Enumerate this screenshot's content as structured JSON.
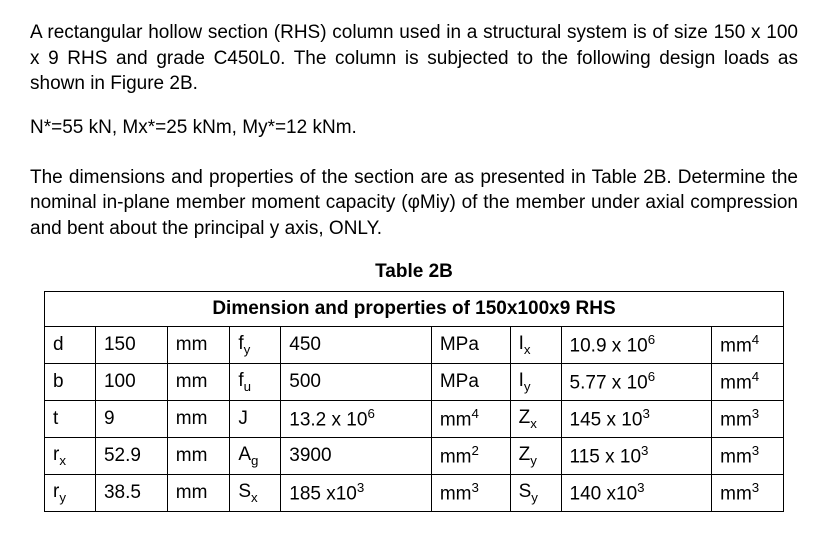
{
  "para1": "A rectangular hollow section (RHS) column used in a structural system is of size 150 x 100 x 9 RHS and grade C450L0. The column is subjected to the following design loads as shown in Figure 2B.",
  "loads": "N*=55 kN, Mx*=25 kNm, My*=12 kNm.",
  "para2": "The dimensions and properties of the section are as presented in Table 2B. Determine the nominal in-plane member moment capacity (φMiy) of the member under axial compression and bent about the principal y axis, ONLY.",
  "table": {
    "title": "Table 2B",
    "header": "Dimension and properties of 150x100x9 RHS",
    "rows": [
      {
        "p1": "d",
        "v1": "150",
        "u1": "mm",
        "p2": "f",
        "p2sub": "y",
        "v2": "450",
        "u2": "MPa",
        "p3": "I",
        "p3sub": "x",
        "v3": "10.9 x 10",
        "v3sup": "6",
        "u3": "mm",
        "u3sup": "4"
      },
      {
        "p1": "b",
        "v1": "100",
        "u1": "mm",
        "p2": "f",
        "p2sub": "u",
        "v2": "500",
        "u2": "MPa",
        "p3": "I",
        "p3sub": "y",
        "v3": "5.77 x 10",
        "v3sup": "6",
        "u3": "mm",
        "u3sup": "4"
      },
      {
        "p1": "t",
        "v1": "9",
        "u1": "mm",
        "p2": "J",
        "p2sub": "",
        "v2": "13.2 x 10",
        "v2sup": "6",
        "u2": "mm",
        "u2sup": "4",
        "p3": "Z",
        "p3sub": "x",
        "v3": "145 x 10",
        "v3sup": "3",
        "u3": "mm",
        "u3sup": "3"
      },
      {
        "p1": "r",
        "p1sub": "x",
        "v1": "52.9",
        "u1": "mm",
        "p2": "A",
        "p2sub": "g",
        "v2": "3900",
        "u2": "mm",
        "u2sup": "2",
        "p3": "Z",
        "p3sub": "y",
        "v3": "115 x 10",
        "v3sup": "3",
        "u3": "mm",
        "u3sup": "3"
      },
      {
        "p1": "r",
        "p1sub": "y",
        "v1": "38.5",
        "u1": "mm",
        "p2": "S",
        "p2sub": "x",
        "v2": "185 x10",
        "v2sup": "3",
        "u2": "mm",
        "u2sup": "3",
        "p3": "S",
        "p3sub": "y",
        "v3": "140 x10",
        "v3sup": "3",
        "u3": "mm",
        "u3sup": "3"
      }
    ]
  }
}
